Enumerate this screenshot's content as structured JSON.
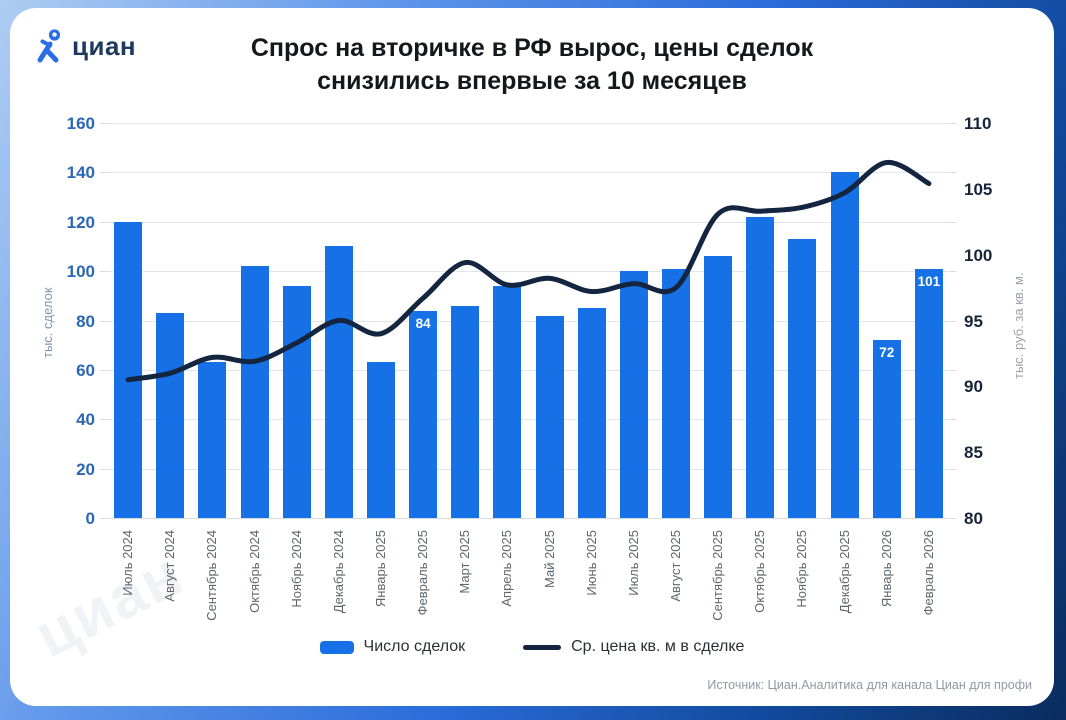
{
  "logo": {
    "text": "циан"
  },
  "title": {
    "lines": [
      "Спрос на вторичке в РФ вырос, цены сделок",
      "снизились впервые за 10 месяцев"
    ]
  },
  "chart_data": {
    "type": "combo bar+line",
    "categories": [
      "Июль 2024",
      "Август 2024",
      "Сентябрь 2024",
      "Октябрь 2024",
      "Ноябрь 2024",
      "Декабрь 2024",
      "Январь 2025",
      "Февраль 2025",
      "Март 2025",
      "Апрель 2025",
      "Май 2025",
      "Июнь 2025",
      "Июль 2025",
      "Август 2025",
      "Сентябрь 2025",
      "Октябрь 2025",
      "Ноябрь 2025",
      "Декабрь 2025",
      "Январь 2026",
      "Февраль 2026"
    ],
    "series": [
      {
        "name": "Число сделок",
        "type": "bar",
        "axis": "left",
        "color": "#1670e6",
        "values": [
          120,
          83,
          63,
          102,
          94,
          110,
          63,
          84,
          86,
          94,
          82,
          85,
          100,
          101,
          106,
          122,
          113,
          140,
          72,
          101
        ],
        "data_labels": {
          "7": "84",
          "18": "72",
          "19": "101"
        }
      },
      {
        "name": "Ср. цена кв. м в сделке",
        "type": "line",
        "axis": "right",
        "color": "#13253f",
        "values": [
          90.5,
          91,
          92.2,
          91.9,
          93.3,
          95,
          94,
          96.7,
          99.4,
          97.7,
          98.2,
          97.2,
          97.8,
          97.5,
          103.1,
          103.3,
          103.6,
          104.7,
          107,
          105.4
        ]
      }
    ],
    "left_axis": {
      "title": "тыс. сделок",
      "min": 0,
      "max": 160,
      "step": 20,
      "ticks": [
        "160",
        "140",
        "120",
        "100",
        "80",
        "60",
        "40",
        "20",
        "0"
      ]
    },
    "right_axis": {
      "title": "тыс. руб. за кв. м.",
      "min": 80,
      "max": 110,
      "step": 5,
      "ticks": [
        "110",
        "105",
        "100",
        "95",
        "90",
        "85",
        "80"
      ]
    },
    "grid": true,
    "legend_position": "bottom"
  },
  "source": "Источник: Циан.Аналитика для канала Циан для профи",
  "watermark": "циан",
  "colors": {
    "bar": "#1670e6",
    "line": "#13253f",
    "left_ticks": "#2b67b2",
    "right_ticks": "#17253a",
    "x_ticks": "#60666e",
    "grid": "#e2e6ea",
    "title": "#15171c",
    "card": "#ffffff",
    "frame_light": "#aecdf2",
    "frame_dark": "#0a2c5e"
  }
}
